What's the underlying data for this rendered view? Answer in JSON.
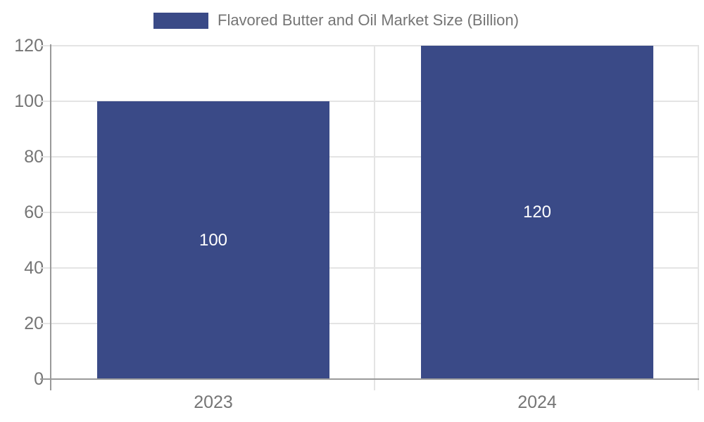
{
  "chart_data": {
    "type": "bar",
    "title": "",
    "legend": {
      "label": "Flavored Butter and Oil Market Size (Billion)",
      "position": "top"
    },
    "categories": [
      "2023",
      "2024"
    ],
    "series": [
      {
        "name": "Flavored Butter and Oil Market Size (Billion)",
        "values": [
          100,
          120
        ]
      }
    ],
    "value_labels": [
      "100",
      "120"
    ],
    "xlabel": "",
    "ylabel": "",
    "ylim": [
      0,
      120
    ],
    "yticks": [
      0,
      20,
      40,
      60,
      80,
      100,
      120
    ],
    "grid": true,
    "colors": {
      "bar": "#3a4a87",
      "grid": "#e4e4e4",
      "axis": "#9a9a9a",
      "tick_label": "#757575",
      "value_label": "#ffffff",
      "background": "#ffffff"
    }
  }
}
